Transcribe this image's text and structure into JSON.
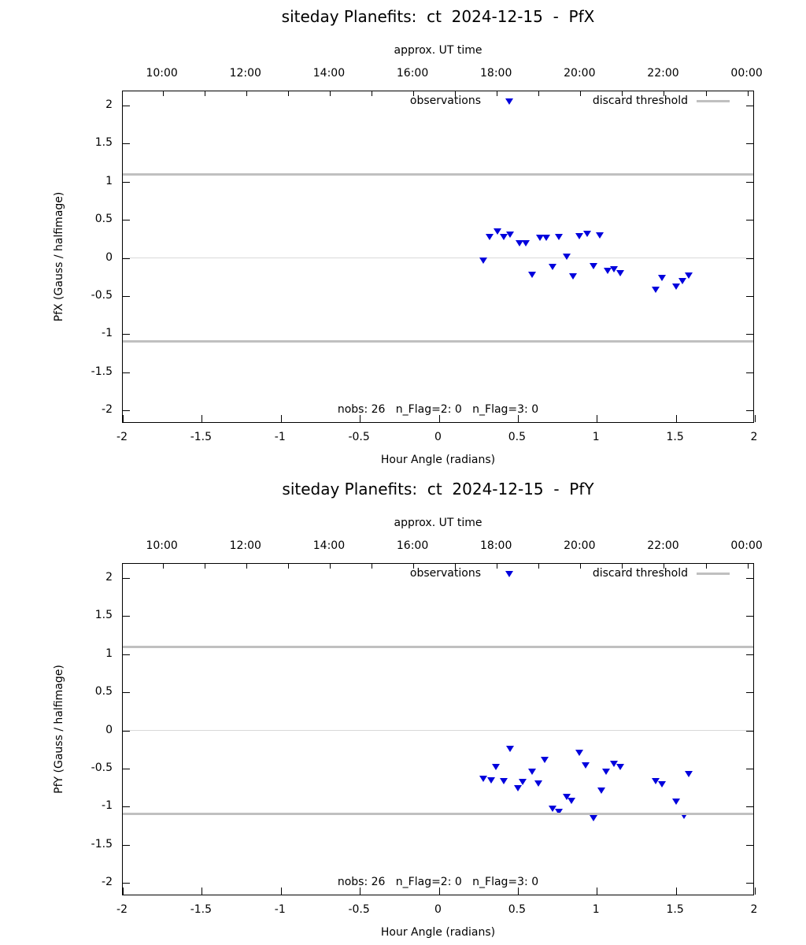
{
  "colors": {
    "observation_marker": "#0000dd",
    "discard_threshold_line": "#c0c0c0",
    "zero_gridline": "#d9d9d9",
    "axis": "#000000",
    "background": "#ffffff"
  },
  "chart_data": [
    {
      "type": "scatter",
      "title": "siteday Planefits:  ct  2024-12-15  -  PfX",
      "x2label": "approx. UT time",
      "x2_tick_labels": [
        "10:00",
        "12:00",
        "14:00",
        "16:00",
        "18:00",
        "20:00",
        "22:00",
        "00:00"
      ],
      "x2_tick_hours": [
        10,
        12,
        14,
        16,
        18,
        20,
        22,
        24
      ],
      "xlabel": "Hour Angle (radians)",
      "ylabel": "PfX (Gauss / halfimage)",
      "x_tick_labels": [
        "-2",
        "-1.5",
        "-1",
        "-0.5",
        "0",
        "0.5",
        "1",
        "1.5",
        "2"
      ],
      "y_tick_labels": [
        "2",
        "1.5",
        "1",
        "0.5",
        "0",
        "-0.5",
        "-1",
        "-1.5",
        "-2"
      ],
      "xlim": [
        -2,
        2
      ],
      "ylim": [
        -2,
        2
      ],
      "grid": "horizontal line at y=0 only",
      "legend_position": "top inside, horizontal",
      "legend": [
        {
          "label": "observations",
          "symbol": "blue-triangle-down"
        },
        {
          "label": "discard threshold",
          "symbol": "gray-line"
        }
      ],
      "discard_thresholds": [
        1.1,
        -1.1
      ],
      "zero_line": 0,
      "stats_text": "nobs: 26   n_Flag=2: 0   n_Flag=3: 0",
      "nobs": 26,
      "n_flag_2": 0,
      "n_flag_3": 0,
      "series": [
        {
          "name": "observations",
          "marker": "triangle-down",
          "points": [
            [
              0.28,
              -0.04
            ],
            [
              0.32,
              0.27
            ],
            [
              0.37,
              0.35
            ],
            [
              0.41,
              0.27
            ],
            [
              0.45,
              0.31
            ],
            [
              0.51,
              0.19
            ],
            [
              0.55,
              0.19
            ],
            [
              0.59,
              -0.22
            ],
            [
              0.64,
              0.26
            ],
            [
              0.68,
              0.26
            ],
            [
              0.72,
              -0.12
            ],
            [
              0.76,
              0.27
            ],
            [
              0.81,
              0.02
            ],
            [
              0.85,
              -0.24
            ],
            [
              0.89,
              0.28
            ],
            [
              0.94,
              0.32
            ],
            [
              0.98,
              -0.11
            ],
            [
              1.02,
              0.29
            ],
            [
              1.07,
              -0.17
            ],
            [
              1.11,
              -0.15
            ],
            [
              1.15,
              -0.2
            ],
            [
              1.37,
              -0.42
            ],
            [
              1.41,
              -0.26
            ],
            [
              1.5,
              -0.38
            ],
            [
              1.54,
              -0.31
            ],
            [
              1.58,
              -0.23
            ]
          ]
        }
      ]
    },
    {
      "type": "scatter",
      "title": "siteday Planefits:  ct  2024-12-15  -  PfY",
      "x2label": "approx. UT time",
      "x2_tick_labels": [
        "10:00",
        "12:00",
        "14:00",
        "16:00",
        "18:00",
        "20:00",
        "22:00",
        "00:00"
      ],
      "x2_tick_hours": [
        10,
        12,
        14,
        16,
        18,
        20,
        22,
        24
      ],
      "xlabel": "Hour Angle (radians)",
      "ylabel": "PfY (Gauss / halfimage)",
      "x_tick_labels": [
        "-2",
        "-1.5",
        "-1",
        "-0.5",
        "0",
        "0.5",
        "1",
        "1.5",
        "2"
      ],
      "y_tick_labels": [
        "2",
        "1.5",
        "1",
        "0.5",
        "0",
        "-0.5",
        "-1",
        "-1.5",
        "-2"
      ],
      "xlim": [
        -2,
        2
      ],
      "ylim": [
        -2,
        2
      ],
      "grid": "horizontal line at y=0 only",
      "legend_position": "top inside, horizontal",
      "legend": [
        {
          "label": "observations",
          "symbol": "blue-triangle-down"
        },
        {
          "label": "discard threshold",
          "symbol": "gray-line"
        }
      ],
      "discard_thresholds": [
        1.1,
        -1.1
      ],
      "zero_line": 0,
      "stats_text": "nobs: 26   n_Flag=2: 0   n_Flag=3: 0",
      "nobs": 26,
      "n_flag_2": 0,
      "n_flag_3": 0,
      "series": [
        {
          "name": "observations",
          "marker": "triangle-down",
          "points": [
            [
              0.28,
              -0.64
            ],
            [
              0.33,
              -0.66
            ],
            [
              0.36,
              -0.48
            ],
            [
              0.41,
              -0.67
            ],
            [
              0.45,
              -0.24
            ],
            [
              0.5,
              -0.76
            ],
            [
              0.53,
              -0.68
            ],
            [
              0.59,
              -0.54
            ],
            [
              0.63,
              -0.7
            ],
            [
              0.67,
              -0.39
            ],
            [
              0.72,
              -1.03
            ],
            [
              0.76,
              -1.07
            ],
            [
              0.81,
              -0.87
            ],
            [
              0.84,
              -0.93
            ],
            [
              0.89,
              -0.29
            ],
            [
              0.93,
              -0.46
            ],
            [
              0.98,
              -1.15
            ],
            [
              1.03,
              -0.79
            ],
            [
              1.06,
              -0.54
            ],
            [
              1.11,
              -0.44
            ],
            [
              1.15,
              -0.48
            ],
            [
              1.37,
              -0.67
            ],
            [
              1.41,
              -0.71
            ],
            [
              1.5,
              -0.94
            ],
            [
              1.55,
              -1.12
            ],
            [
              1.58,
              -0.57
            ]
          ]
        }
      ]
    }
  ]
}
